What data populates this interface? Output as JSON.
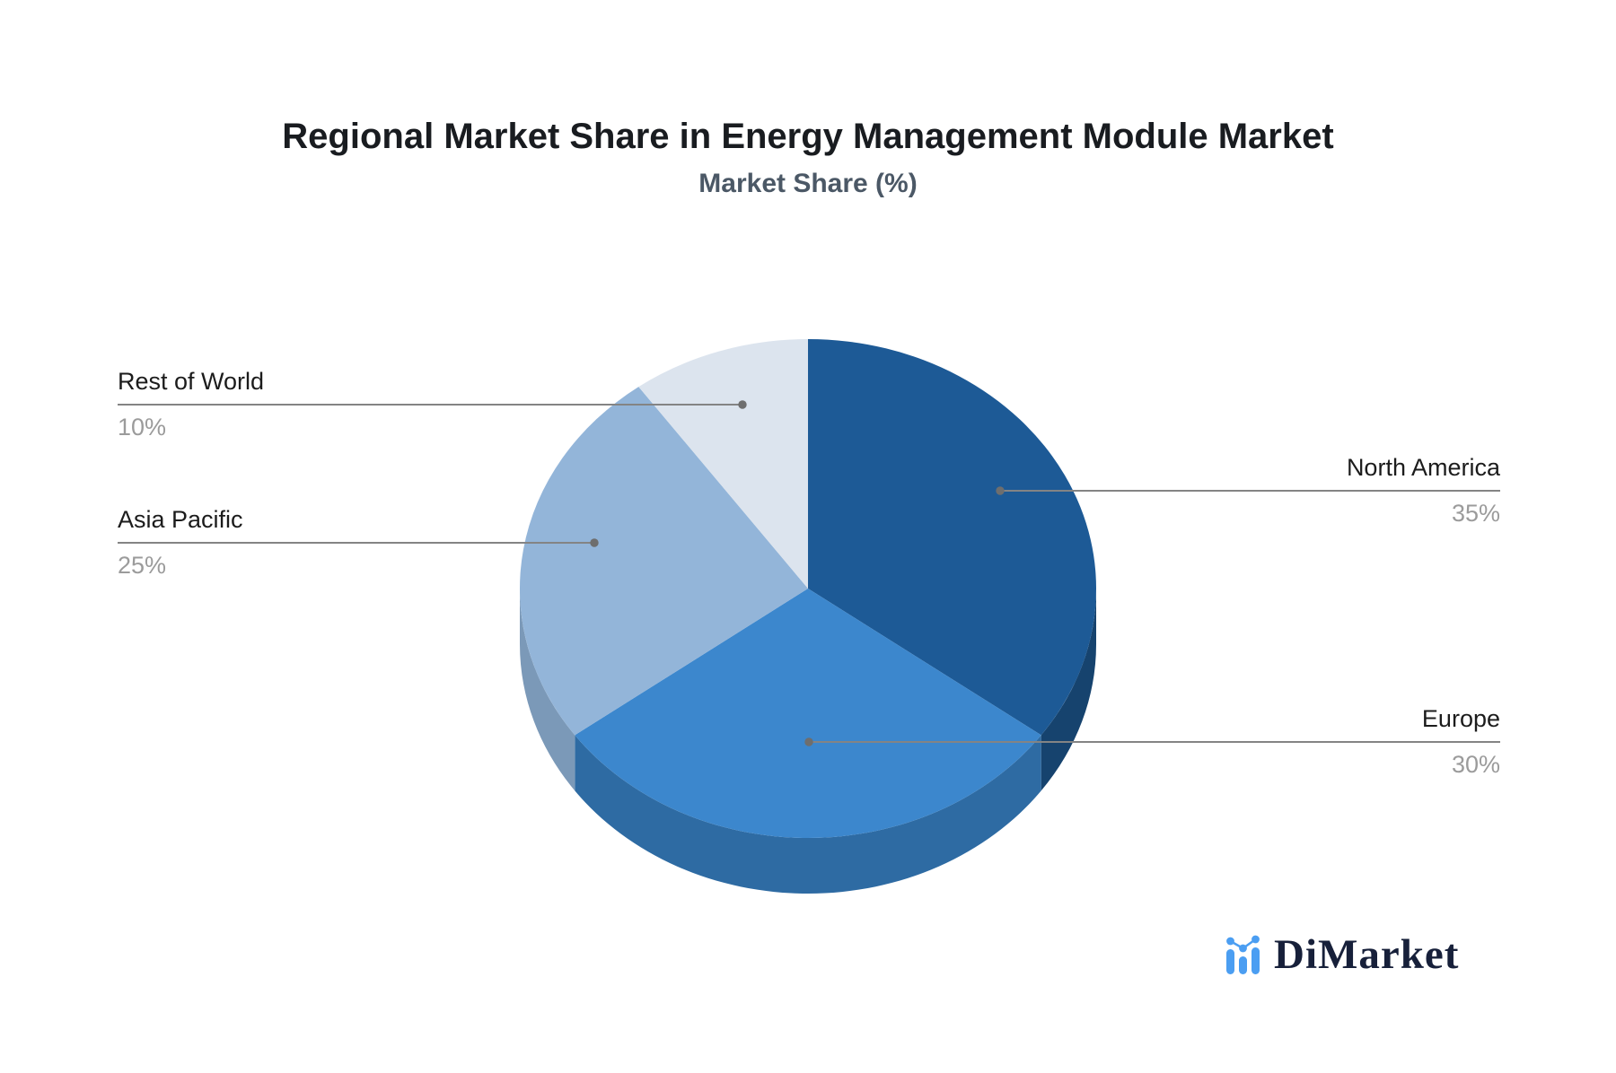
{
  "header": {
    "title": "Regional Market Share in Energy Management Module Market",
    "subtitle": "Market Share (%)"
  },
  "chart_data": {
    "type": "pie",
    "style": "3d-pie",
    "title": "Regional Market Share in Energy Management Module Market",
    "unit": "%",
    "start_angle_deg": 0,
    "direction": "clockwise",
    "legend": "none",
    "slices": [
      {
        "label": "North America",
        "value": 35,
        "pct_label": "35%",
        "color": "#1d5a96",
        "side_color": "#16436e"
      },
      {
        "label": "Europe",
        "value": 30,
        "pct_label": "30%",
        "color": "#3c87cd",
        "side_color": "#2e6ba3"
      },
      {
        "label": "Asia Pacific",
        "value": 25,
        "pct_label": "25%",
        "color": "#93b5d9",
        "side_color": "#7b99b8"
      },
      {
        "label": "Rest of World",
        "value": 10,
        "pct_label": "10%",
        "color": "#dce4ee",
        "side_color": "#b9c6d8"
      }
    ],
    "label_style": {
      "name_color": "#1c1c1c",
      "pct_color": "#9b9b9b",
      "leader_line_color": "#848484",
      "dot_color": "#6e6e6e"
    }
  },
  "brand": {
    "name": "DiMarket",
    "icon": "bar-line-chart-logo-icon",
    "icon_color": "#4b9ef2",
    "text_color": "#17203a"
  }
}
